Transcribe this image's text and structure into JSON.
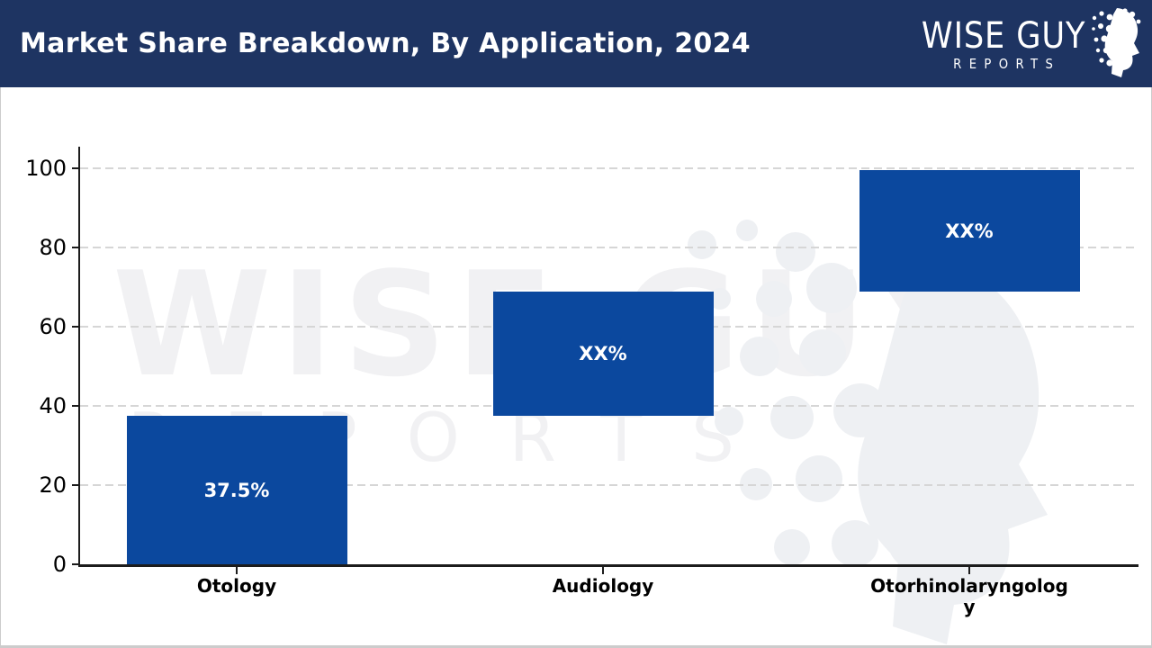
{
  "page": {
    "background": "#ffffff",
    "frame_color": "#cccccc"
  },
  "header": {
    "bg_color": "#1e3462",
    "title": "Market Share Breakdown, By Application, 2024",
    "text_color": "#ffffff",
    "logo": {
      "line1": "WISE GUY",
      "line2": "REPORTS"
    }
  },
  "watermark": {
    "line1": "WISE GUY",
    "line2": "REPORTS",
    "color": "#f1f1f3"
  },
  "chart_data": {
    "type": "bar",
    "subtype": "floating-waterfall",
    "title": "Market Share Breakdown, By Application, 2024",
    "categories": [
      "Otology",
      "Audiology",
      "Otorhinolaryngology"
    ],
    "series": [
      {
        "name": "Market share (%)",
        "segments": [
          {
            "category": "Otology",
            "start": 0,
            "end": 37.5,
            "label": "37.5%"
          },
          {
            "category": "Audiology",
            "start": 37.5,
            "end": 68.8,
            "label": "XX%"
          },
          {
            "category": "Otorhinolaryngology",
            "start": 68.8,
            "end": 99.5,
            "label": "XX%"
          }
        ]
      }
    ],
    "xlabel": "",
    "ylabel": "",
    "ylim": [
      0,
      105.5
    ],
    "yticks": [
      0,
      20,
      40,
      60,
      80,
      100
    ],
    "grid": "horizontal-dashed",
    "legend": "none",
    "bar_color": "#0b489e",
    "bar_label_color": "#ffffff",
    "axis_color": "#1c1c1c",
    "grid_color": "#d6d6d6"
  },
  "axis_display": {
    "category_labels": [
      "Otology",
      "Audiology",
      "Otorhinolaryngolog\ny"
    ]
  }
}
